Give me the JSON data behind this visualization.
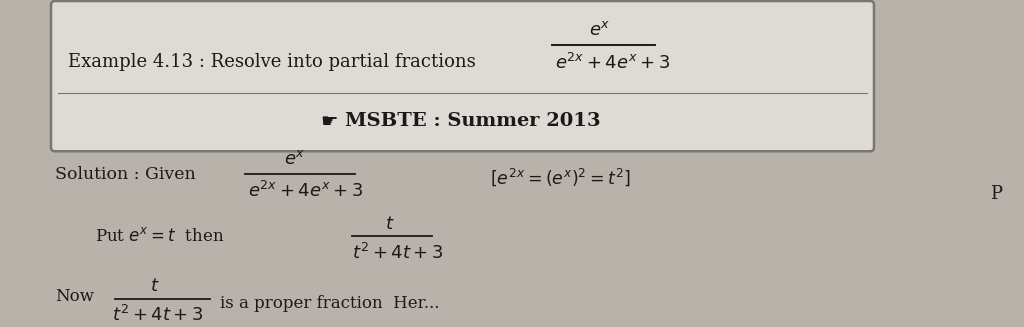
{
  "page_bg": "#b8b2aa",
  "box_bg": "#dedad4",
  "box_border": "#777770",
  "text_color": "#1a1a1a",
  "title_text": "Example 4.13 : Resolve into partial fractions",
  "msbte_symbol": "☛",
  "msbte_text": "  MSBTE : Summer 2013",
  "sol_text": "Solution : Given",
  "bracket_expr": "$[e^{2x}=(e^{x})^{2}=t^{2}]$",
  "put_text": "Put $e^{x}=t$  then",
  "now_text": "Now",
  "now_suffix": "is a proper fraction  Her...",
  "p_text": "P"
}
